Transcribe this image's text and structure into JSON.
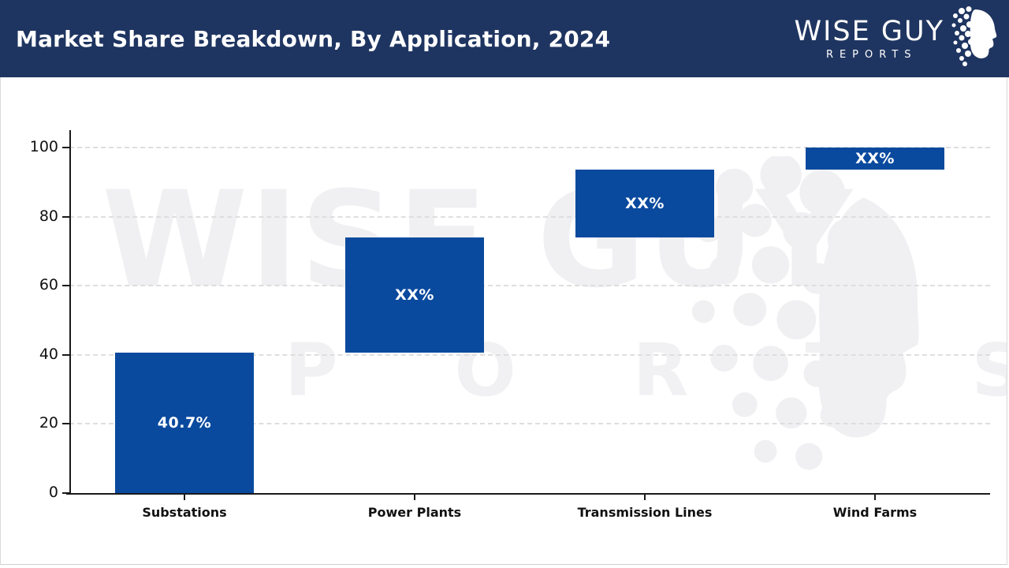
{
  "header": {
    "title": "Market Share Breakdown, By Application, 2024",
    "logo": {
      "wordmark": "WISE GUY",
      "subtext": "REPORTS"
    }
  },
  "watermark": {
    "line1": "WISE GUY",
    "line2": "P O R T S"
  },
  "colors": {
    "header_bg": "#1f3561",
    "bar_blue": "#0a4a9e",
    "gridline": "#dedede",
    "axis_text": "#111111",
    "bar_label": "#ffffff",
    "watermark": "#f0f0f2"
  },
  "chart_data": {
    "type": "bar",
    "subtype": "waterfall",
    "title": "Market Share Breakdown, By Application, 2024",
    "categories": [
      "Substations",
      "Power Plants",
      "Transmission Lines",
      "Wind Farms"
    ],
    "segments": [
      {
        "category": "Substations",
        "start": 0,
        "end": 40.7,
        "size": 40.7,
        "label": "40.7%"
      },
      {
        "category": "Power Plants",
        "start": 40.7,
        "end": 74.0,
        "size": 33.3,
        "label": "XX%"
      },
      {
        "category": "Transmission Lines",
        "start": 74.0,
        "end": 93.7,
        "size": 19.7,
        "label": "XX%"
      },
      {
        "category": "Wind Farms",
        "start": 93.7,
        "end": 100.0,
        "size": 6.3,
        "label": "XX%"
      }
    ],
    "y_ticks": [
      0,
      20,
      40,
      60,
      80,
      100
    ],
    "ylim": [
      0,
      105
    ],
    "xlabel": "",
    "ylabel": "",
    "grid": "horizontal dashed",
    "legend": "none",
    "bar_color": "#0a4a9e",
    "label_color": "#ffffff"
  }
}
